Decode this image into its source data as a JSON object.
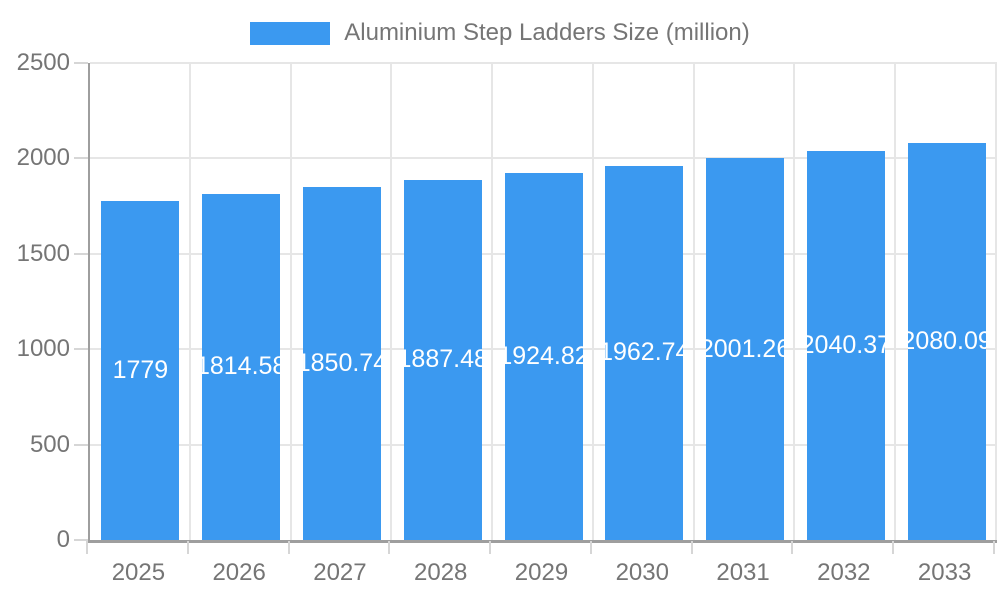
{
  "chart_data": {
    "type": "bar",
    "title": "",
    "legend": "Aluminium Step Ladders Size (million)",
    "legend_position": "top-center",
    "categories": [
      "2025",
      "2026",
      "2027",
      "2028",
      "2029",
      "2030",
      "2031",
      "2032",
      "2033"
    ],
    "series": [
      {
        "name": "Aluminium Step Ladders Size (million)",
        "values": [
          1779,
          1814.58,
          1850.74,
          1887.48,
          1924.82,
          1962.74,
          2001.26,
          2040.37,
          2080.09
        ],
        "labels": [
          "1779",
          "1814.58",
          "1850.74",
          "1887.48",
          "1924.82",
          "1962.74",
          "2001.26",
          "2040.37",
          "2080.09"
        ]
      }
    ],
    "xlabel": "",
    "ylabel": "",
    "ylim": [
      0,
      2500
    ],
    "yticks": [
      0,
      500,
      1000,
      1500,
      2000,
      2500
    ],
    "grid": "both",
    "colors": {
      "bar": "#3b99f0",
      "bar_value_text": "#ffffff",
      "axis_text": "#757575",
      "legend_text": "#757575",
      "gridline": "#e6e6e6",
      "axis_line": "#9e9e9e",
      "tick_mark": "#d6d6d6"
    }
  }
}
